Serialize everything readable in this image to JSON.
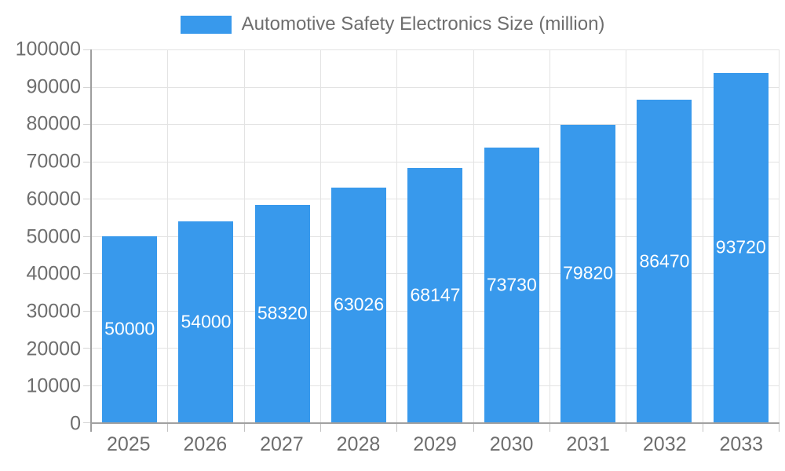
{
  "legend": {
    "label": "Automotive Safety Electronics Size (million)"
  },
  "colors": {
    "bar": "#3899EC",
    "grid": "#e3e3e3",
    "axis": "#9e9e9e",
    "text": "#6e6e6e",
    "bar_label": "#ffffff"
  },
  "chart_data": {
    "type": "bar",
    "title": "",
    "legend_entries": [
      "Automotive Safety Electronics Size (million)"
    ],
    "legend_position": "top",
    "categories": [
      "2025",
      "2026",
      "2027",
      "2028",
      "2029",
      "2030",
      "2031",
      "2032",
      "2033"
    ],
    "values": [
      50000,
      54000,
      58320,
      63026,
      68147,
      73730,
      79820,
      86470,
      93720
    ],
    "data_labels": [
      "50000",
      "54000",
      "58320",
      "63026",
      "68147",
      "73730",
      "79820",
      "86470",
      "93720"
    ],
    "xlabel": "",
    "ylabel": "",
    "ylim": [
      0,
      100000
    ],
    "ytick_step": 10000,
    "ytick_labels": [
      "0",
      "10000",
      "20000",
      "30000",
      "40000",
      "50000",
      "60000",
      "70000",
      "80000",
      "90000",
      "100000"
    ],
    "grid": true
  }
}
